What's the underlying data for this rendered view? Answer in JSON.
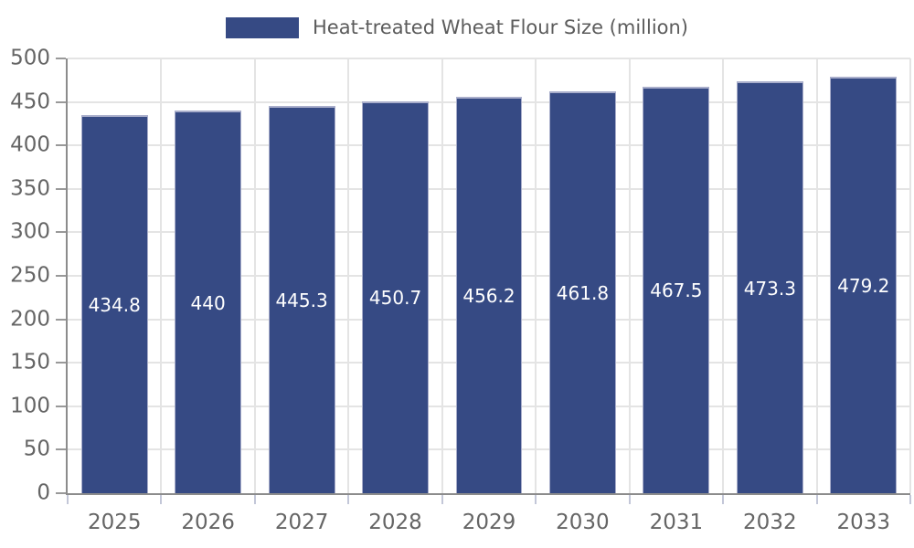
{
  "legend": {
    "label": "Heat-treated Wheat Flour Size (million)",
    "swatch_color": "#364a84"
  },
  "chart_data": {
    "type": "bar",
    "title": "Heat-treated Wheat Flour Size (million)",
    "categories": [
      "2025",
      "2026",
      "2027",
      "2028",
      "2029",
      "2030",
      "2031",
      "2032",
      "2033"
    ],
    "values": [
      434.8,
      440,
      445.3,
      450.7,
      456.2,
      461.8,
      467.5,
      473.3,
      479.2
    ],
    "xlabel": "",
    "ylabel": "",
    "ylim": [
      0,
      500
    ],
    "yticks": [
      0,
      50,
      100,
      150,
      200,
      250,
      300,
      350,
      400,
      450,
      500
    ],
    "grid": true,
    "legend_position": "top-center",
    "bar_color": "#364a84",
    "bar_edge_color": "#a9aecb",
    "value_label_color": "#ffffff",
    "axis_label_color": "#656565",
    "gridline_color": "#e4e4e4",
    "spine_color": "#8c8c8c"
  }
}
